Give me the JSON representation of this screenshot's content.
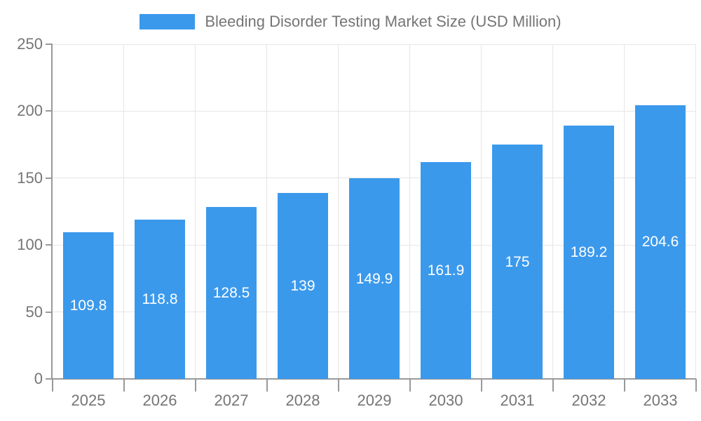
{
  "colors": {
    "bar": "#3b99ec",
    "grid": "#e6e6e6",
    "axis": "#999999",
    "tick_text": "#757575",
    "value_text": "#ffffff",
    "background": "#ffffff"
  },
  "legend": {
    "label": "Bleeding Disorder Testing Market Size (USD Million)"
  },
  "chart_data": {
    "type": "bar",
    "title": "Bleeding Disorder Testing Market Size (USD Million)",
    "series_name": "Bleeding Disorder Testing Market Size (USD Million)",
    "categories": [
      "2025",
      "2026",
      "2027",
      "2028",
      "2029",
      "2030",
      "2031",
      "2032",
      "2033"
    ],
    "values": [
      109.8,
      118.8,
      128.5,
      139,
      149.9,
      161.9,
      175,
      189.2,
      204.6
    ],
    "value_labels": [
      "109.8",
      "118.8",
      "128.5",
      "139",
      "149.9",
      "161.9",
      "175",
      "189.2",
      "204.6"
    ],
    "xlabel": "",
    "ylabel": "",
    "ylim": [
      0,
      250
    ],
    "yticks": [
      0,
      50,
      100,
      150,
      200,
      250
    ],
    "grid": true,
    "legend_position": "top",
    "value_label_position": "inside-center"
  }
}
